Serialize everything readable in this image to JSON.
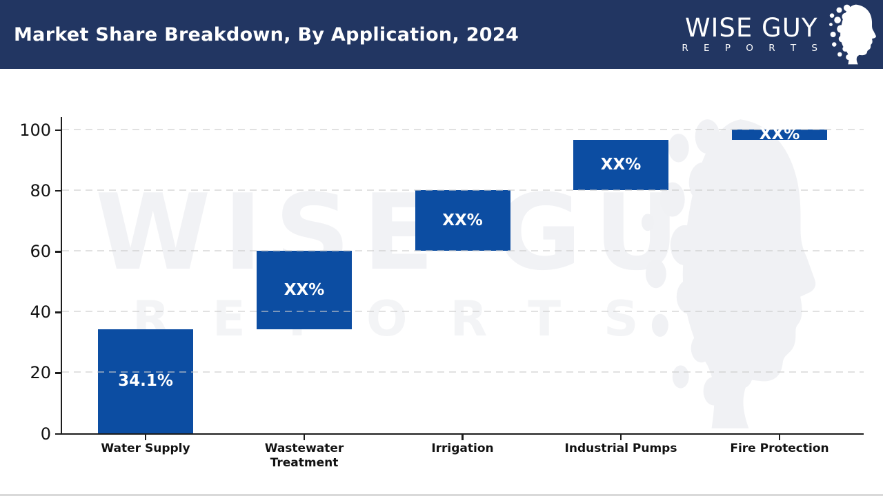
{
  "header": {
    "title": "Market Share Breakdown, By Application, 2024",
    "logo": {
      "line1": "WISE GUY",
      "line2": "R E P O R T S"
    },
    "bg_color": "#223662"
  },
  "watermark": {
    "line1": "WISE GUY",
    "line2": "REPORTS"
  },
  "chart_data": {
    "type": "bar",
    "subtype": "waterfall",
    "title": "Market Share Breakdown, By Application, 2024",
    "categories": [
      "Water Supply",
      "Wastewater Treatment",
      "Irrigation",
      "Industrial Pumps",
      "Fire Protection"
    ],
    "segments": [
      {
        "category": "Water Supply",
        "start": 0,
        "end": 34.1,
        "label": "34.1%"
      },
      {
        "category": "Wastewater Treatment",
        "start": 34.1,
        "end": 60,
        "label": "XX%"
      },
      {
        "category": "Irrigation",
        "start": 60,
        "end": 80,
        "label": "XX%"
      },
      {
        "category": "Industrial Pumps",
        "start": 80,
        "end": 96.5,
        "label": "XX%"
      },
      {
        "category": "Fire Protection",
        "start": 96.5,
        "end": 100,
        "label": "XX%"
      }
    ],
    "y_ticks": [
      0,
      20,
      40,
      60,
      80,
      100
    ],
    "ylim": [
      0,
      104
    ],
    "xlabel": "",
    "ylabel": "",
    "grid": "horizontal dashed",
    "legend": "none",
    "bar_color": "#0c4da2",
    "bar_label_color": "#ffffff"
  }
}
